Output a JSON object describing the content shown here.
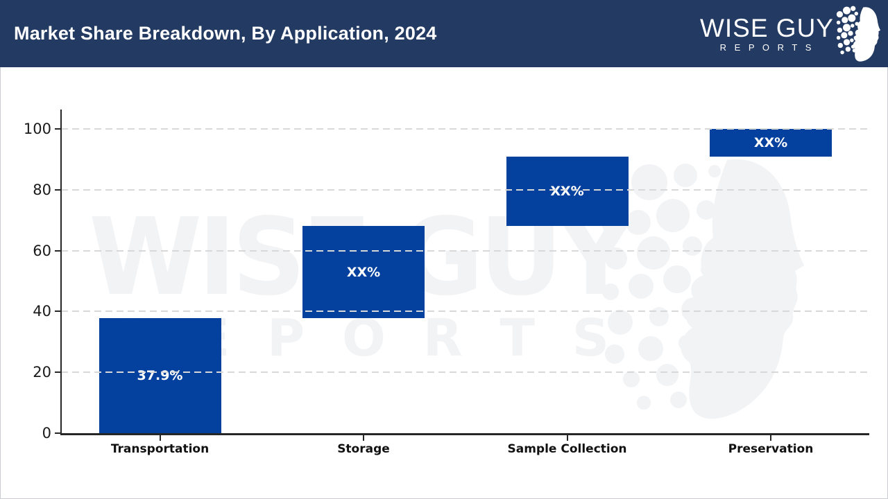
{
  "header": {
    "title": "Market Share Breakdown, By Application, 2024",
    "logo": {
      "line1": "WISE GUY",
      "line2": "R E P O R T S"
    }
  },
  "watermark": {
    "line1": "WISE GUY",
    "line2": "R E P O R T S"
  },
  "colors": {
    "header_bg": "#233A62",
    "bar": "#04419E",
    "bar_label": "#FFFFFF",
    "grid": "#D8D8D8",
    "axis": "#262626",
    "watermark": "#F2F3F5"
  },
  "chart_data": {
    "type": "bar",
    "subtype": "waterfall",
    "title": "Market Share Breakdown, By Application, 2024",
    "categories": [
      "Transportation",
      "Storage",
      "Sample Collection",
      "Preservation"
    ],
    "series": [
      {
        "name": "Market Share (%)",
        "segments": [
          {
            "category": "Transportation",
            "start": 0,
            "end": 37.9,
            "label": "37.9%"
          },
          {
            "category": "Storage",
            "start": 37.9,
            "end": 68,
            "label": "XX%"
          },
          {
            "category": "Sample Collection",
            "start": 68,
            "end": 91,
            "label": "XX%"
          },
          {
            "category": "Preservation",
            "start": 91,
            "end": 100,
            "label": "XX%"
          }
        ]
      }
    ],
    "xlabel": "",
    "ylabel": "",
    "ylim": [
      0,
      105
    ],
    "yticks": [
      0,
      20,
      40,
      60,
      80,
      100
    ],
    "grid": "horizontal-dashed",
    "legend": "none"
  }
}
